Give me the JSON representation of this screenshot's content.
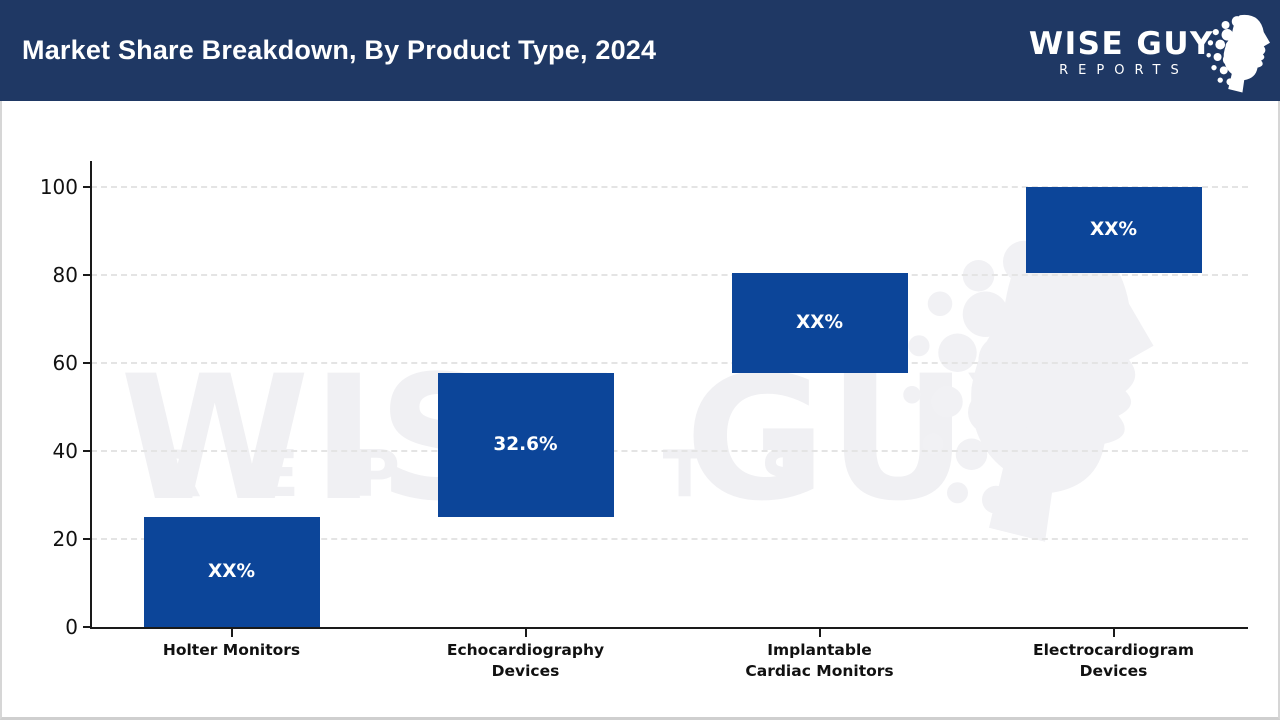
{
  "header": {
    "title": "Market Share Breakdown, By Product Type, 2024",
    "bg_color": "#1f3864",
    "logo": {
      "line1": "WISE GUY",
      "line2": "REPORTS"
    }
  },
  "watermark": {
    "line1": "WISE GUY",
    "line2": "REPORTS"
  },
  "chart_data": {
    "type": "bar",
    "variant": "floating-waterfall",
    "title": "Market Share Breakdown, By Product Type, 2024",
    "categories": [
      [
        "Holter Monitors"
      ],
      [
        "Echocardiography",
        "Devices"
      ],
      [
        "Implantable",
        "Cardiac Monitors"
      ],
      [
        "Electrocardiogram",
        "Devices"
      ]
    ],
    "segments": [
      {
        "start": 0,
        "end": 25,
        "label": "XX%"
      },
      {
        "start": 25,
        "end": 57.6,
        "label": "32.6%"
      },
      {
        "start": 57.6,
        "end": 80.5,
        "label": "XX%"
      },
      {
        "start": 80.5,
        "end": 100,
        "label": "XX%"
      }
    ],
    "ylim": [
      0,
      100
    ],
    "yticks": [
      0,
      20,
      40,
      60,
      80,
      100
    ],
    "xlabel": "",
    "ylabel": "",
    "grid": "horizontal-dashed",
    "legend": "none",
    "bar_color": "#0c4599",
    "value_label_color": "#ffffff",
    "axis_color": "#1a1a1a",
    "grid_color": "#e4e4e4"
  }
}
